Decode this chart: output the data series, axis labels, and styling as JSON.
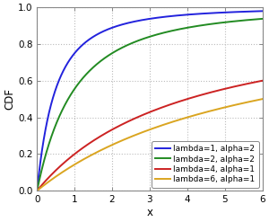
{
  "title": "",
  "xlabel": "x",
  "ylabel": "CDF",
  "xlim": [
    0,
    6
  ],
  "ylim": [
    0,
    1.0
  ],
  "xticks": [
    0,
    1,
    2,
    3,
    4,
    5,
    6
  ],
  "yticks": [
    0.0,
    0.2,
    0.4,
    0.6,
    0.8,
    1.0
  ],
  "curves": [
    {
      "lambda": 1,
      "alpha": 2,
      "color": "#2222DD",
      "label": "lambda=1, alpha=2"
    },
    {
      "lambda": 2,
      "alpha": 2,
      "color": "#228B22",
      "label": "lambda=2, alpha=2"
    },
    {
      "lambda": 4,
      "alpha": 1,
      "color": "#CC2222",
      "label": "lambda=4, alpha=1"
    },
    {
      "lambda": 6,
      "alpha": 1,
      "color": "#DAA520",
      "label": "lambda=6, alpha=1"
    }
  ],
  "background_color": "#FFFFFF",
  "plot_bg_color": "#FFFFFF",
  "grid_color": "#BBBBBB",
  "border_color": "#888888",
  "line_width": 1.4,
  "legend_fontsize": 6.5,
  "axis_label_fontsize": 8.5,
  "tick_fontsize": 7.5
}
